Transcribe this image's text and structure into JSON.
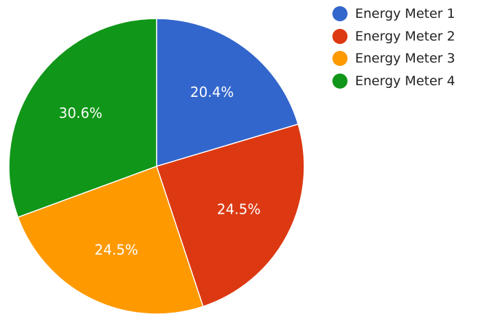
{
  "chart_data": {
    "type": "pie",
    "title": "",
    "categories": [
      "Energy Meter 1",
      "Energy Meter 2",
      "Energy Meter 3",
      "Energy Meter 4"
    ],
    "values": [
      20.4,
      24.5,
      24.5,
      30.6
    ],
    "value_labels": [
      "20.4%",
      "24.5%",
      "24.5%",
      "30.6%"
    ],
    "colors": [
      "#3366cc",
      "#dc3912",
      "#ff9900",
      "#109618"
    ],
    "start_angle": "12 o'clock",
    "direction": "clockwise",
    "legend_position": "right"
  },
  "legend": {
    "items": [
      {
        "label": "Energy Meter 1",
        "color": "#3366cc"
      },
      {
        "label": "Energy Meter 2",
        "color": "#dc3912"
      },
      {
        "label": "Energy Meter 3",
        "color": "#ff9900"
      },
      {
        "label": "Energy Meter 4",
        "color": "#109618"
      }
    ]
  }
}
